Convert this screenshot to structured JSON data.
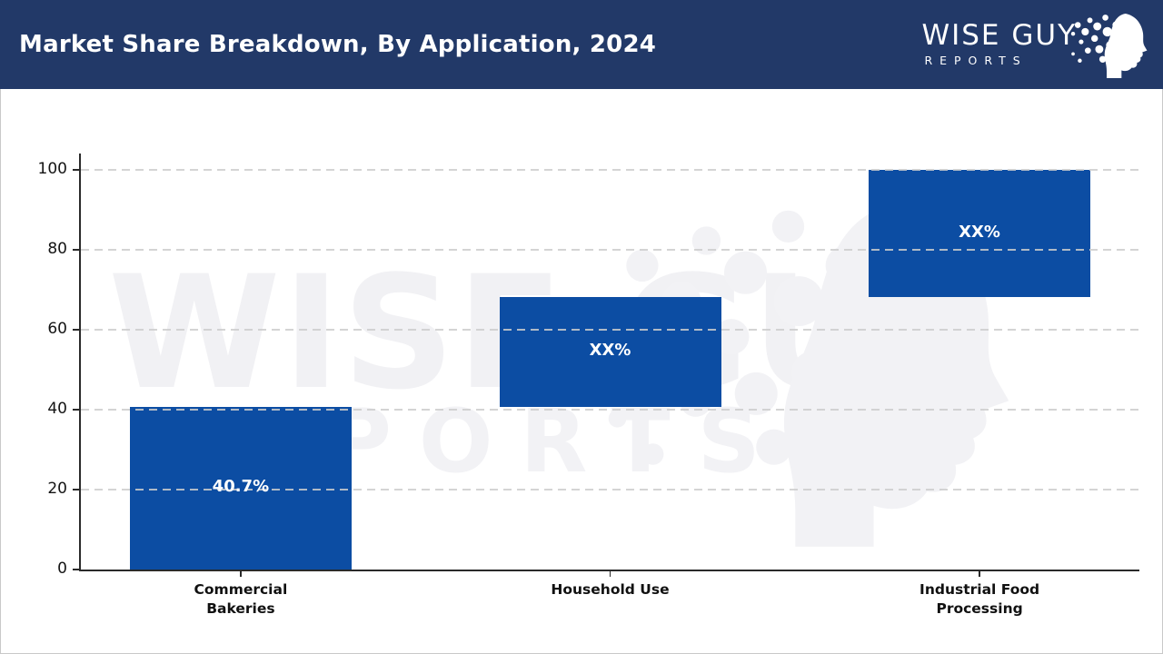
{
  "header": {
    "title": "Market Share Breakdown, By Application, 2024",
    "logo": {
      "brand_top": "WISE GUY",
      "brand_bottom": "REPORTS"
    }
  },
  "watermark": {
    "line1": "WISE GUY",
    "line2": "REPORTS"
  },
  "colors": {
    "header_bg": "#223968",
    "bar": "#0c4da3",
    "bar_label": "#ffffff",
    "gridline": "#cdcdcd",
    "axis": "#2a2a2a",
    "watermark": "#f2f2f5"
  },
  "chart_data": {
    "type": "bar",
    "subtype": "stacked-waterfall",
    "title": "Market Share Breakdown, By Application, 2024",
    "categories": [
      "Commercial\nBakeries",
      "Household Use",
      "Industrial Food\nProcessing"
    ],
    "segments": [
      {
        "category": "Commercial Bakeries",
        "start": 0,
        "end": 40.7,
        "label": "40.7%"
      },
      {
        "category": "Household Use",
        "start": 40.7,
        "end": 68.2,
        "label": "XX%"
      },
      {
        "category": "Industrial Food Processing",
        "start": 68.2,
        "end": 100,
        "label": "XX%"
      }
    ],
    "xlabel": "",
    "ylabel": "",
    "ylim": [
      0,
      100
    ],
    "yticks": [
      0,
      20,
      40,
      60,
      80,
      100
    ],
    "grid": "horizontal-dashed",
    "legend": null
  }
}
